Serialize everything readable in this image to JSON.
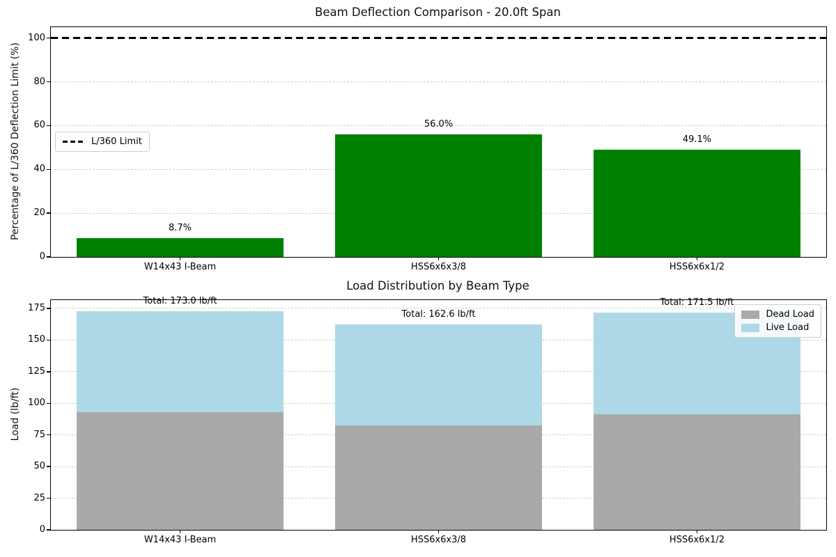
{
  "figure": {
    "background": "#ffffff"
  },
  "chart_data": [
    {
      "type": "bar",
      "title": "Beam Deflection Comparison - 20.0ft Span",
      "xlabel": "",
      "ylabel": "Percentage of L/360 Deflection Limit (%)",
      "categories": [
        "W14x43 I-Beam",
        "HSS6x6x3/8",
        "HSS6x6x1/2"
      ],
      "values": [
        8.7,
        56.0,
        49.1
      ],
      "bar_labels": [
        "8.7%",
        "56.0%",
        "49.1%"
      ],
      "bar_color": "#008000",
      "yticks": [
        0,
        20,
        40,
        60,
        80,
        100
      ],
      "ylim": [
        0,
        105
      ],
      "grid": "horizontal-dashed",
      "limit_line": {
        "value": 100,
        "label": "L/360 Limit",
        "color": "#000000",
        "style": "dashed"
      },
      "legend": {
        "position": "center-left",
        "entries": [
          {
            "label": "L/360 Limit",
            "swatch": "dashed-line",
            "color": "#000000"
          }
        ]
      }
    },
    {
      "type": "stacked-bar",
      "title": "Load Distribution by Beam Type",
      "xlabel": "",
      "ylabel": "Load (lb/ft)",
      "categories": [
        "W14x43 I-Beam",
        "HSS6x6x3/8",
        "HSS6x6x1/2"
      ],
      "series": [
        {
          "name": "Dead Load",
          "color": "#a9a9a9",
          "values": [
            93.0,
            82.6,
            91.5
          ]
        },
        {
          "name": "Live Load",
          "color": "#add8e6",
          "values": [
            80.0,
            80.0,
            80.0
          ]
        }
      ],
      "totals": [
        173.0,
        162.6,
        171.5
      ],
      "total_labels": [
        "Total: 173.0 lb/ft",
        "Total: 162.6 lb/ft",
        "Total: 171.5 lb/ft"
      ],
      "yticks": [
        0,
        25,
        50,
        75,
        100,
        125,
        150,
        175
      ],
      "ylim": [
        0,
        181.6
      ],
      "grid": "horizontal-dashed",
      "legend": {
        "position": "upper-right",
        "entries": [
          {
            "label": "Dead Load",
            "swatch": "patch",
            "color": "#a9a9a9"
          },
          {
            "label": "Live Load",
            "swatch": "patch",
            "color": "#add8e6"
          }
        ]
      }
    }
  ]
}
